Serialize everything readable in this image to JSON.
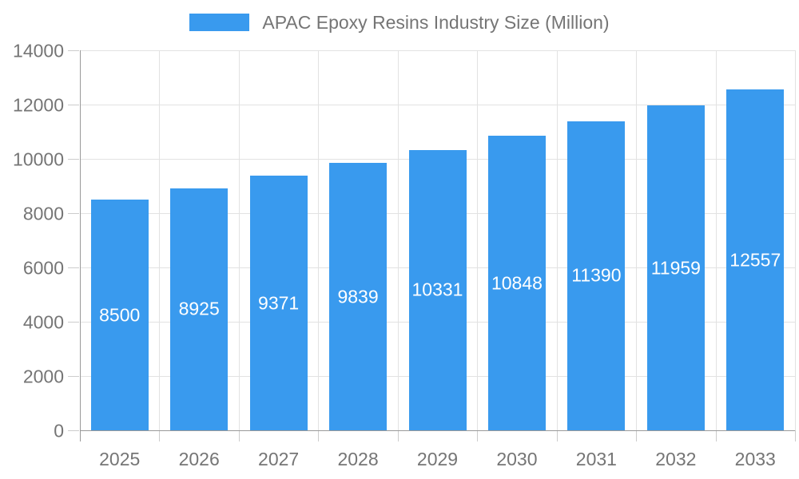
{
  "chart_data": {
    "type": "bar",
    "title": "APAC Epoxy Resins Industry Size (Million)",
    "legend": {
      "label": "APAC Epoxy Resins Industry Size (Million)",
      "position": "top"
    },
    "categories": [
      "2025",
      "2026",
      "2027",
      "2028",
      "2029",
      "2030",
      "2031",
      "2032",
      "2033"
    ],
    "series": [
      {
        "name": "APAC Epoxy Resins Industry Size (Million)",
        "values": [
          8500,
          8925,
          9371,
          9839,
          10331,
          10848,
          11390,
          11959,
          12557
        ]
      }
    ],
    "data_labels": [
      "8500",
      "8925",
      "9371",
      "9839",
      "10331",
      "10848",
      "11390",
      "11959",
      "12557"
    ],
    "xlabel": "",
    "ylabel": "",
    "ylim": [
      0,
      14000
    ],
    "ytick_step": 2000,
    "ytick_labels": [
      "0",
      "2000",
      "4000",
      "6000",
      "8000",
      "10000",
      "12000",
      "14000"
    ],
    "grid": true,
    "colors": {
      "bar": "#399AEE",
      "axis_line": "#999999",
      "tick": "#cccccc",
      "gridline": "#e2e2e2",
      "axis_label": "#757575",
      "data_label": "#ffffff",
      "background": "#ffffff"
    }
  }
}
